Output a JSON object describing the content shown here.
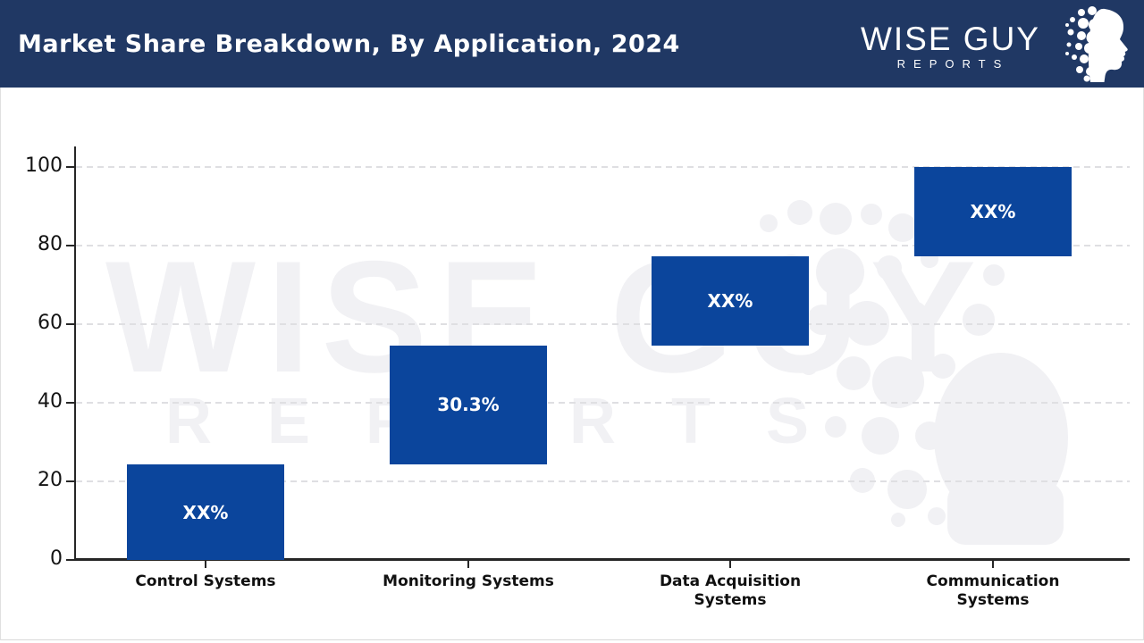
{
  "header": {
    "bg_color": "#203864",
    "title": "Market Share Breakdown, By Application, 2024",
    "logo": {
      "line1": "WISE GUY",
      "line2": "REPORTS"
    }
  },
  "watermark": {
    "line1": "WISE GUY",
    "line2": "REPORTS"
  },
  "chart_data": {
    "type": "bar",
    "subtype": "floating-waterfall",
    "title": "Market Share Breakdown, By Application, 2024",
    "categories": [
      "Control Systems",
      "Monitoring Systems",
      "Data Acquisition Systems",
      "Communication Systems"
    ],
    "category_label_lines": [
      [
        "Control Systems"
      ],
      [
        "Monitoring Systems"
      ],
      [
        "Data Acquisition",
        "Systems"
      ],
      [
        "Communication",
        "Systems"
      ]
    ],
    "segments": [
      {
        "category": "Control Systems",
        "start": 0,
        "end": 24.3,
        "label": "XX%"
      },
      {
        "category": "Monitoring Systems",
        "start": 24.3,
        "end": 54.6,
        "label": "30.3%"
      },
      {
        "category": "Data Acquisition Systems",
        "start": 54.6,
        "end": 77.3,
        "label": "XX%"
      },
      {
        "category": "Communication Systems",
        "start": 77.3,
        "end": 100,
        "label": "XX%"
      }
    ],
    "xlabel": "",
    "ylabel": "",
    "ylim": [
      0,
      100
    ],
    "yticks": [
      0,
      20,
      40,
      60,
      80,
      100
    ],
    "grid": "horizontal-dashed",
    "legend": "none",
    "bar_color": "#0b459c",
    "bar_label_color": "#ffffff"
  }
}
